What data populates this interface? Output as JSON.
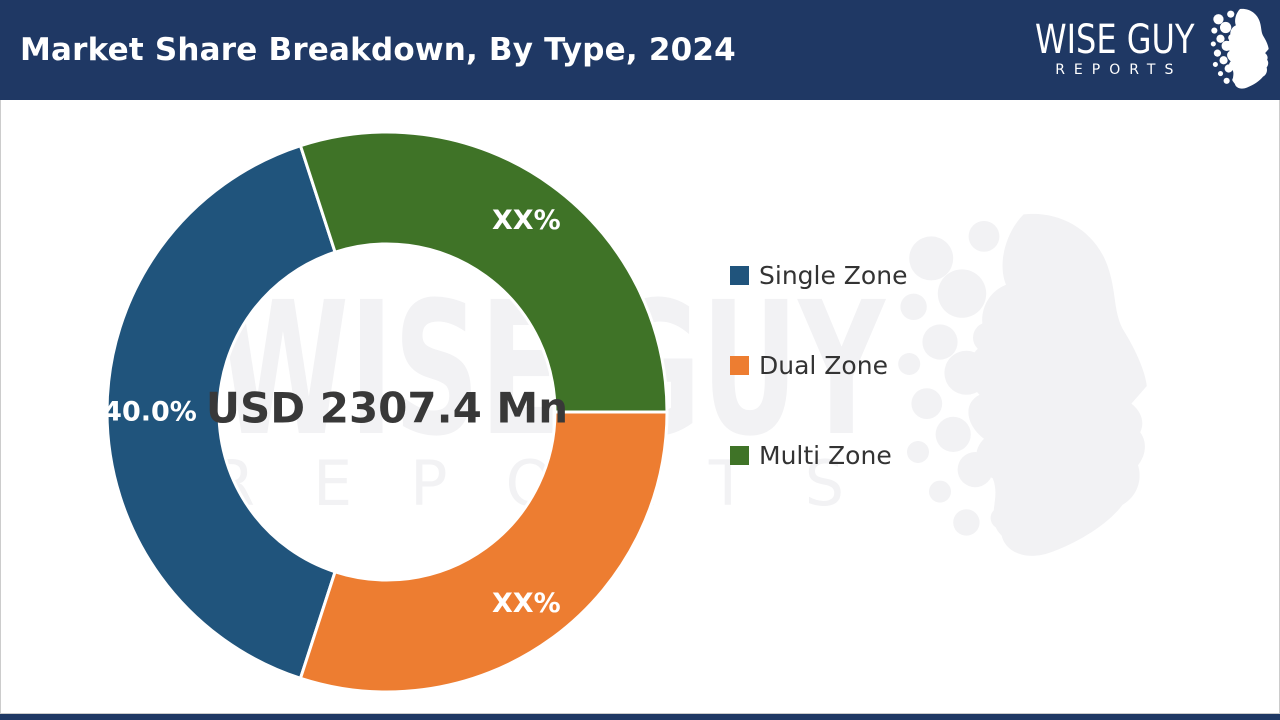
{
  "header": {
    "title": "Market Share Breakdown, By Type, 2024",
    "logo": {
      "line1": "WISE GUY",
      "line2": "REPORTS"
    }
  },
  "watermark": {
    "line1": "WISE GUY",
    "line2": "REPORTS"
  },
  "chart_data": {
    "type": "pie",
    "subtype": "donut",
    "title": "Market Share Breakdown, By Type, 2024",
    "center_label": "USD 2307.4 Mn",
    "unit": "percent of market share",
    "start_angle_deg": 342,
    "direction": "counterclockwise",
    "inner_radius_ratio": 0.6,
    "legend_position": "right",
    "series": [
      {
        "name": "Single Zone",
        "value": 40,
        "label": "40.0%",
        "color": "#20547c"
      },
      {
        "name": "Dual Zone",
        "value": 30,
        "label": "XX%",
        "color": "#ed7d31"
      },
      {
        "name": "Multi Zone",
        "value": 30,
        "label": "XX%",
        "color": "#3f7327"
      }
    ]
  },
  "colors": {
    "header_bg": "#1f3864",
    "footer_bar": "#1f3864",
    "canvas_bg": "#ffffff",
    "center_text": "#383838",
    "legend_text": "#333333",
    "slice_label_text": "#ffffff",
    "watermark": "#f2f2f4"
  }
}
